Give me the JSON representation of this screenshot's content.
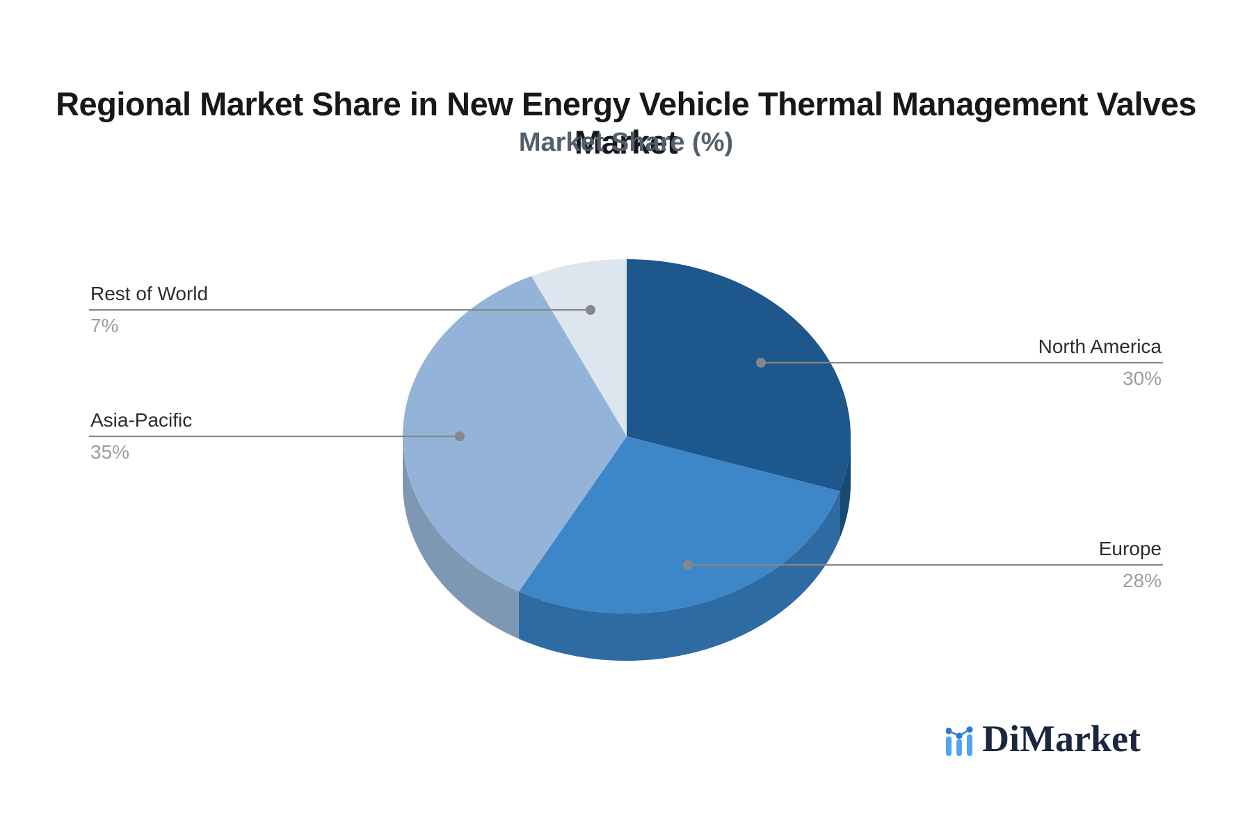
{
  "header": {
    "title": "Regional Market Share in New Energy Vehicle Thermal Management Valves Market",
    "subtitle": "Market Share (%)"
  },
  "chart_data": {
    "type": "pie",
    "style": "3d-pie",
    "title": "Regional Market Share in New Energy Vehicle Thermal Management Valves Market",
    "subtitle": "Market Share (%)",
    "categories": [
      "North America",
      "Europe",
      "Asia-Pacific",
      "Rest of World"
    ],
    "values": [
      30,
      28,
      35,
      7
    ],
    "unit": "%",
    "value_labels": [
      "30%",
      "28%",
      "35%",
      "7%"
    ],
    "start_angle": "12-oclock",
    "direction": "clockwise",
    "legend": "none",
    "slice_colors": [
      "#1d578b",
      "#3d87c9",
      "#93b4d8",
      "#dde5ef"
    ],
    "slice_side_colors": [
      "#164a73",
      "#2e6ba3",
      "#7e97b2",
      "#c3cfdf"
    ],
    "callout_line_color": "#85878a",
    "label_color": "#2a2d31",
    "percent_label_color": "#9b9da1"
  },
  "logo": {
    "text": "DiMarket",
    "icon": "bar-chart-logo-icon",
    "bar_color": "#4fa5f4",
    "dot_color": "#2e7ad2",
    "text_color": "#1b2740"
  }
}
